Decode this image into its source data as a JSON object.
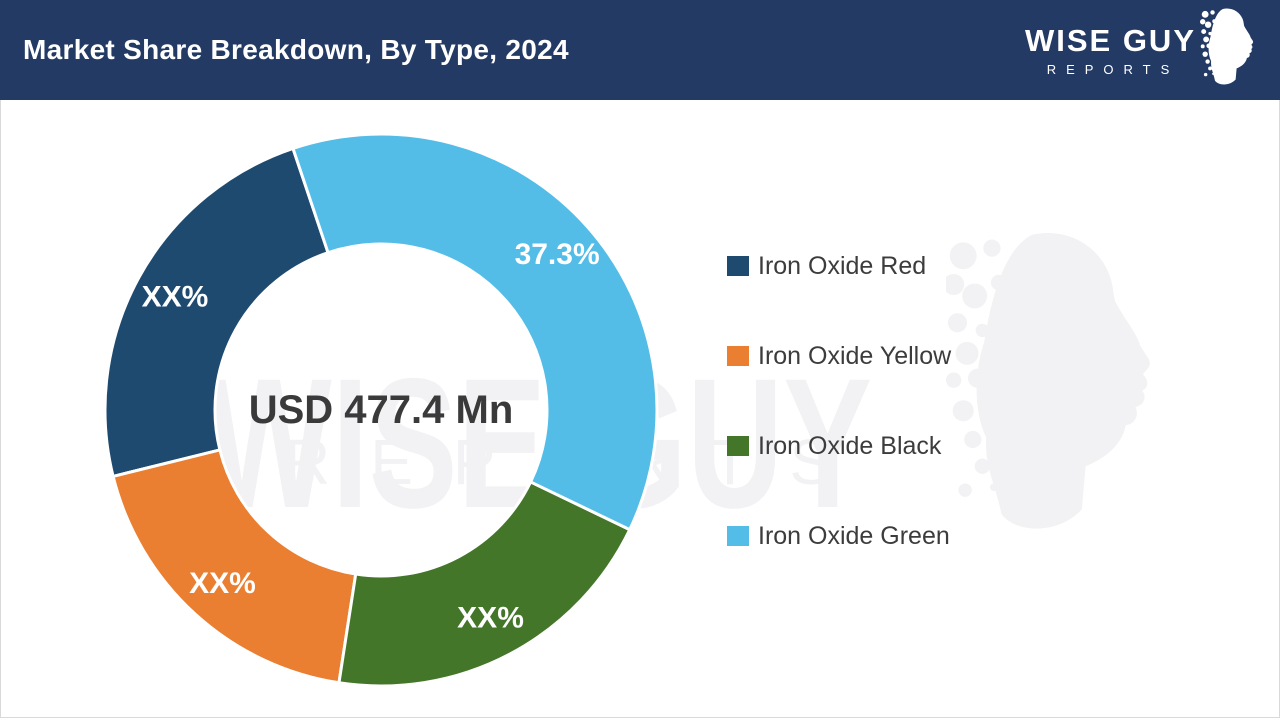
{
  "header": {
    "title": "Market Share Breakdown, By Type, 2024",
    "logo": {
      "line1": "WISE GUY",
      "line2": "REPORTS"
    }
  },
  "watermark": {
    "line1": "WISE GUY",
    "line2": "REPORTS"
  },
  "colors": {
    "header_bg": "#233A64",
    "title_text": "#FFFFFF",
    "center_text": "#3A3A3A",
    "legend_text": "#3C3C3C",
    "slice_label_text": "#FFFFFF",
    "watermark": "#F2F2F4",
    "card_border": "#D9D9D9"
  },
  "chart_data": {
    "type": "donut",
    "title": "Market Share Breakdown, By Type, 2024",
    "center_label": "USD 477.4 Mn",
    "unit": "percent share",
    "start_angle_deg": -18.6,
    "direction": "counter-clockwise",
    "legend_position": "right",
    "slices": [
      {
        "name": "Iron Oxide Red",
        "value_pct": 23.7,
        "label": "XX%",
        "color": "#1F4A70"
      },
      {
        "name": "Iron Oxide Yellow",
        "value_pct": 18.7,
        "label": "XX%",
        "color": "#EA7E31"
      },
      {
        "name": "Iron Oxide Black",
        "value_pct": 20.3,
        "label": "XX%",
        "color": "#447629"
      },
      {
        "name": "Iron Oxide Green",
        "value_pct": 37.3,
        "label": "37.3%",
        "color": "#53BDE8"
      }
    ]
  }
}
